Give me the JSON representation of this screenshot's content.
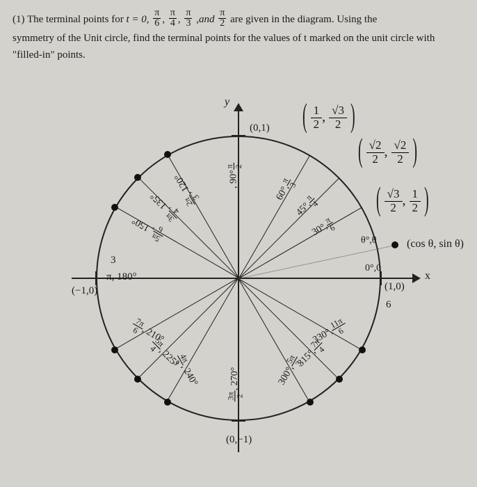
{
  "problem": {
    "number": "(1)",
    "pre": "The terminal points for ",
    "frac_labels": {
      "pi6": {
        "n": "π",
        "d": "6"
      },
      "pi4": {
        "n": "π",
        "d": "4"
      },
      "pi3": {
        "n": "π",
        "d": "3"
      },
      "pi2": {
        "n": "π",
        "d": "2"
      }
    },
    "t_eq": "t = 0,",
    "and_word": ",and",
    "post": " are given in the diagram. Using the",
    "line2": "symmetry of the Unit circle, find the terminal points for the values of t marked on the unit circle with \"filled-in\" points."
  },
  "axis": {
    "x": "x",
    "y": "y"
  },
  "q1_coords": {
    "pi2": {
      "label": "(0,1)"
    },
    "pi3": {
      "n1": "1",
      "d1": "2",
      "n2": "√3",
      "d2": "2"
    },
    "pi4": {
      "n1": "√2",
      "d1": "2",
      "n2": "√2",
      "d2": "2"
    },
    "pi6": {
      "n1": "√3",
      "d1": "2",
      "n2": "1",
      "d2": "2"
    }
  },
  "special": {
    "theta": "θ°,θ",
    "cos_sin": "(cos θ,  sin θ)",
    "zero": "0°,0",
    "one_zero": "(1,0)",
    "pi_180": "π, 180°",
    "neg_one": "(−1,0)",
    "neg_zero_one": "(0,−1)",
    "three_mark": "3",
    "six_mark": "6",
    "three_pi_2": {
      "n": "3π",
      "d": "2",
      "deg": ", 270°"
    }
  },
  "angles_main": [
    {
      "deg": 30,
      "frac_n": "π",
      "frac_d": "6",
      "text": "30°,",
      "rot": -30
    },
    {
      "deg": 45,
      "frac_n": "π",
      "frac_d": "4",
      "text": "45°,",
      "rot": -45
    },
    {
      "deg": 60,
      "frac_n": "π",
      "frac_d": "3",
      "text": "60°,",
      "rot": -60
    },
    {
      "deg": 90,
      "frac_n": "π",
      "frac_d": "2",
      "text": ", 90°",
      "rot": -90
    },
    {
      "deg": 120,
      "frac_n": "2π",
      "frac_d": "3",
      "text": ", 120°",
      "rot": -120,
      "pre": true
    },
    {
      "deg": 135,
      "frac_n": "3π",
      "frac_d": "4",
      "text": ", 135°",
      "rot": -135,
      "pre": true
    },
    {
      "deg": 150,
      "frac_n": "5π",
      "frac_d": "6",
      "text": ", 150°",
      "rot": -150,
      "pre": true
    },
    {
      "deg": 210,
      "frac_n": "7π",
      "frac_d": "6",
      "text": ", 210°",
      "rot": 30,
      "pre": true,
      "q34": true
    },
    {
      "deg": 225,
      "frac_n": "5π",
      "frac_d": "4",
      "text": ", 225°",
      "rot": 45,
      "pre": true,
      "q34": true
    },
    {
      "deg": 240,
      "frac_n": "4π",
      "frac_d": "3",
      "text": ", 240°",
      "rot": 60,
      "pre": true,
      "q34": true
    },
    {
      "deg": 300,
      "frac_n": "5π",
      "frac_d": "3",
      "text": "300°,",
      "rot": -60,
      "q34": true
    },
    {
      "deg": 315,
      "frac_n": "7π",
      "frac_d": "4",
      "text": "315°,",
      "rot": -45,
      "q34": true
    },
    {
      "deg": 330,
      "frac_n": "11π",
      "frac_d": "6",
      "text": "330°,",
      "rot": -30,
      "q34": true
    }
  ],
  "colors": {
    "paper": "#d4d2cc",
    "ink": "#1a1a1a"
  }
}
